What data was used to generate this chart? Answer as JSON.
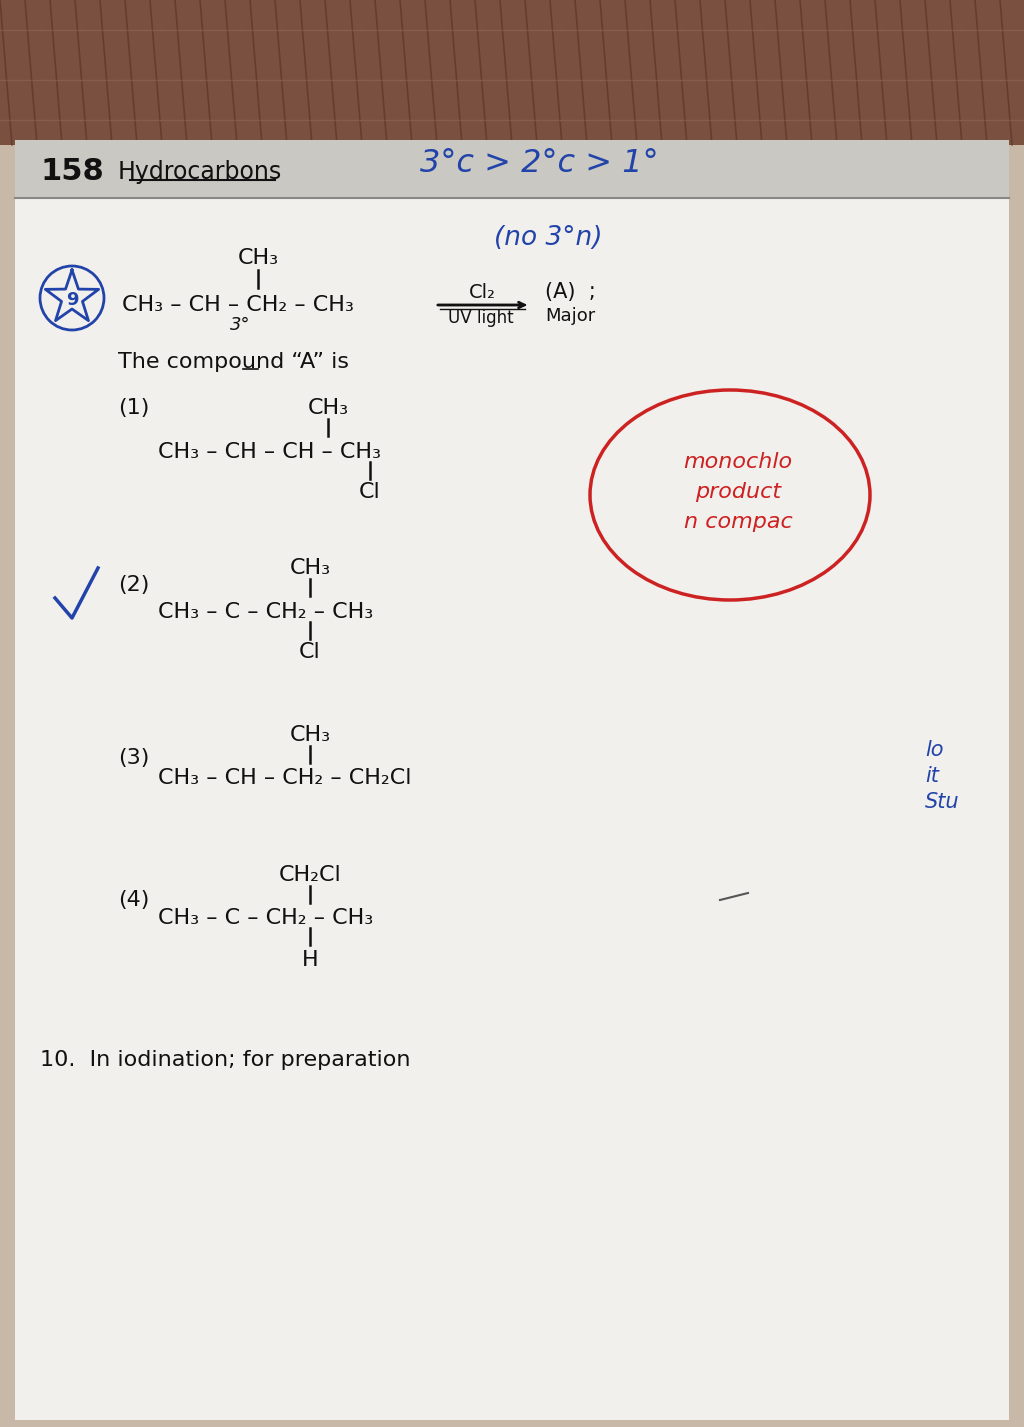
{
  "bg_color": "#c8b8a8",
  "page_bg": "#f0eeeb",
  "header_bg": "#d0cec8",
  "title_num": "158",
  "title_text": "Hydrocarbons",
  "handwritten_top": "3°c > 2°c > 1°",
  "note_paren": "(no 3°n)",
  "reagent_top": "Cl₂",
  "reagent_bottom": "UV light",
  "product_label": "(A)  ;",
  "major_label": "Major",
  "question_text": "The compound “A” is",
  "note_mono_lines": [
    "monochlo",
    "product",
    "n compac"
  ],
  "note_side_lines": [
    "lo",
    "it",
    "Stu"
  ],
  "q10_text": "10.  In iodination; for preparation",
  "black": "#111111",
  "blue": "#2244aa",
  "red": "#cc2222"
}
